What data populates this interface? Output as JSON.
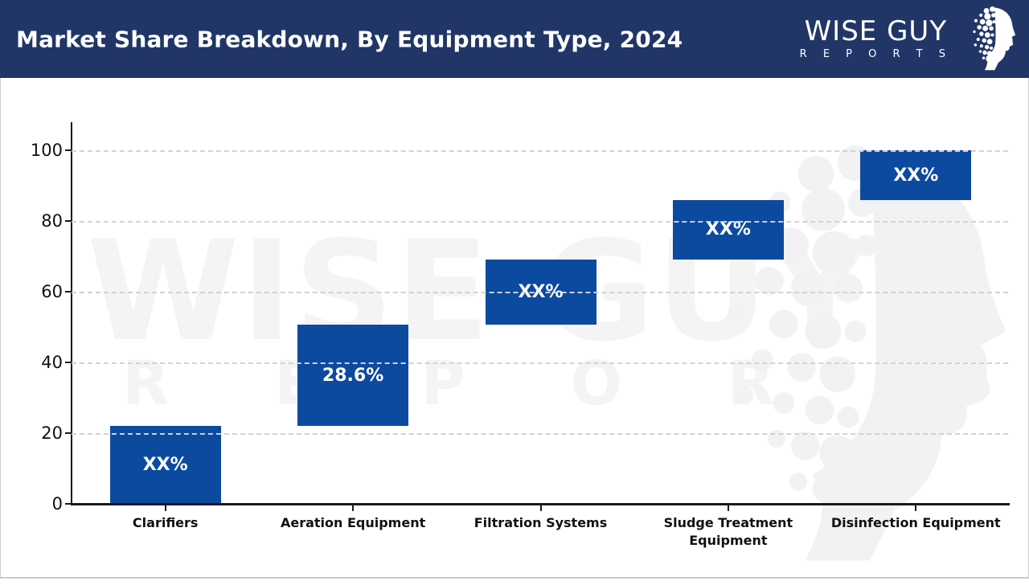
{
  "header": {
    "title": "Market Share Breakdown, By Equipment Type, 2024",
    "bg_color": "#213667",
    "logo": {
      "line1": "WISE GUY",
      "line2": "R E P O R T S"
    }
  },
  "watermark": {
    "line1": "WISE GUY",
    "line2": "R E P O R T S"
  },
  "chart_data": {
    "type": "bar",
    "subtype": "waterfall",
    "title": "Market Share Breakdown, By Equipment Type, 2024",
    "xlabel": "",
    "ylabel": "",
    "categories": [
      "Clarifiers",
      "Aeration Equipment",
      "Filtration Systems",
      "Sludge Treatment Equipment",
      "Disinfection Equipment"
    ],
    "segments": [
      {
        "category": "Clarifiers",
        "start": 0,
        "end": 22,
        "label": "XX%"
      },
      {
        "category": "Aeration Equipment",
        "start": 22,
        "end": 50.6,
        "label": "28.6%"
      },
      {
        "category": "Filtration Systems",
        "start": 50.6,
        "end": 69.1,
        "label": "XX%"
      },
      {
        "category": "Sludge Treatment Equipment",
        "start": 69.1,
        "end": 85.9,
        "label": "XX%"
      },
      {
        "category": "Disinfection Equipment",
        "start": 85.9,
        "end": 100,
        "label": "XX%"
      }
    ],
    "y_ticks": [
      0,
      20,
      40,
      60,
      80,
      100
    ],
    "ylim": [
      0,
      108
    ],
    "bar_color": "#0c4aa0",
    "grid": true,
    "grid_style": "dashed",
    "legend": false
  }
}
